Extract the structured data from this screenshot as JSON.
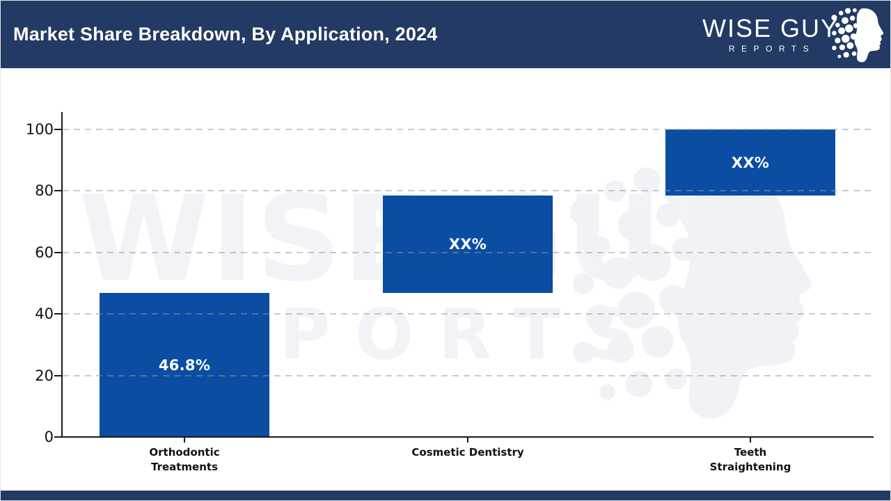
{
  "header": {
    "title": "Market Share Breakdown, By Application, 2024",
    "logo": {
      "wordmark": "WISE GUY",
      "subtext": "REPORTS"
    }
  },
  "watermark": {
    "line1": "WISE GUY",
    "line2": "REPORTS"
  },
  "chart_data": {
    "type": "bar",
    "subtype": "waterfall",
    "title": "Market Share Breakdown, By Application, 2024",
    "categories": [
      {
        "label": "Orthodontic Treatments",
        "lines": [
          "Orthodontic",
          "Treatments"
        ]
      },
      {
        "label": "Cosmetic Dentistry",
        "lines": [
          "Cosmetic Dentistry"
        ]
      },
      {
        "label": "Teeth Straightening",
        "lines": [
          "Teeth",
          "Straightening"
        ]
      }
    ],
    "segments": [
      {
        "category": "Orthodontic Treatments",
        "start": 0,
        "end": 46.8,
        "label": "46.8%"
      },
      {
        "category": "Cosmetic Dentistry",
        "start": 46.8,
        "end": 78.5,
        "label": "XX%"
      },
      {
        "category": "Teeth Straightening",
        "start": 78.5,
        "end": 100,
        "label": "XX%"
      }
    ],
    "ylim": [
      0,
      100
    ],
    "yticks": [
      100,
      80,
      60,
      40,
      20,
      0
    ],
    "ytick_labels": [
      "100",
      "80",
      "60",
      "40",
      "20",
      "0"
    ],
    "grid": "horizontal dashed, drawn above bars",
    "legend": "none"
  },
  "colors": {
    "header_bg": "#223a64",
    "footer_bg": "#223a64",
    "bar": "#0b4da2",
    "bar_label": "#ffffff",
    "axis": "#1a1a1a",
    "gridline": "#91969e",
    "watermark": "#f2f3f6"
  }
}
